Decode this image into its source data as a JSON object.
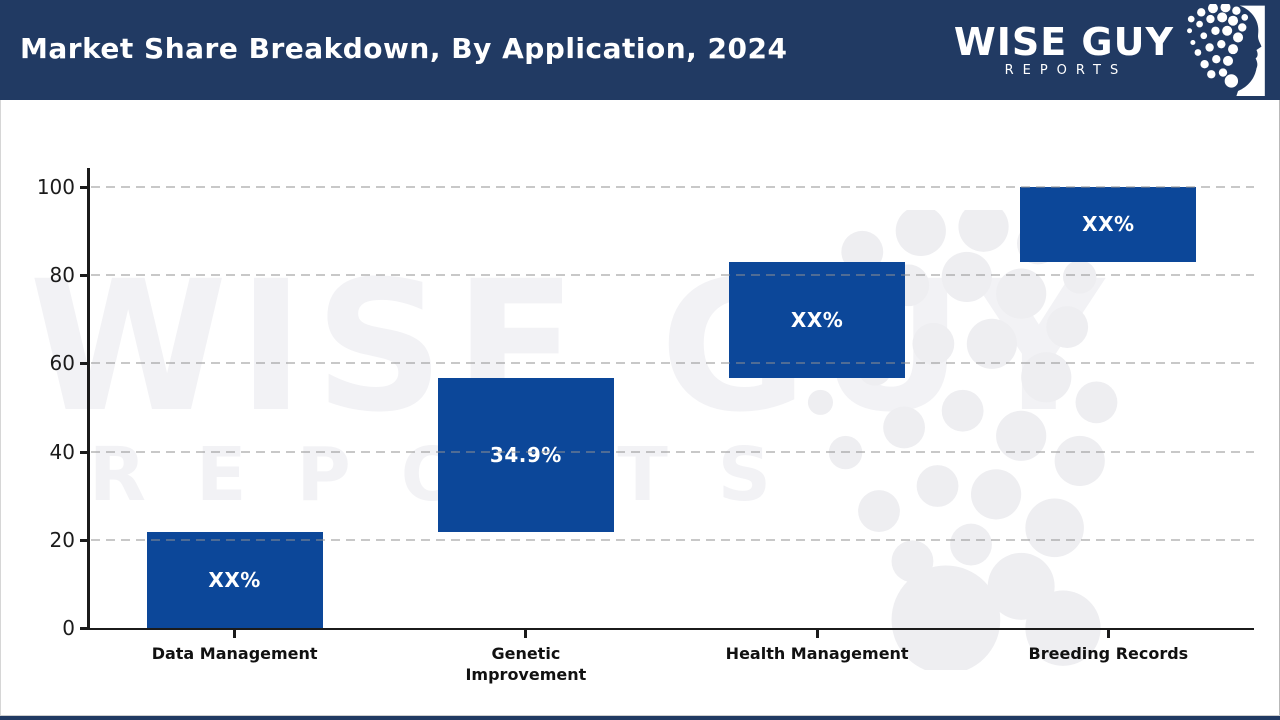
{
  "header": {
    "title": "Market Share Breakdown, By Application, 2024",
    "logo": {
      "line1": "WISE GUY",
      "line2": "REPORTS"
    }
  },
  "watermark": {
    "line1": "WISE GUY",
    "line2": "REPORTS"
  },
  "chart_data": {
    "type": "bar",
    "variant": "waterfall",
    "title": "Market Share Breakdown, By Application, 2024",
    "categories": [
      "Data Management",
      "Genetic Improvement",
      "Health Management",
      "Breeding Records"
    ],
    "categories_display": [
      [
        "Data Management"
      ],
      [
        "Genetic",
        "Improvement"
      ],
      [
        "Health Management"
      ],
      [
        "Breeding Records"
      ]
    ],
    "bars": [
      {
        "category": "Data Management",
        "start": 0,
        "end": 21.8,
        "label": "XX%"
      },
      {
        "category": "Genetic Improvement",
        "start": 21.8,
        "end": 56.7,
        "label": "34.9%"
      },
      {
        "category": "Health Management",
        "start": 56.7,
        "end": 83.0,
        "label": "XX%"
      },
      {
        "category": "Breeding Records",
        "start": 83.0,
        "end": 100.0,
        "label": "XX%"
      }
    ],
    "ylim": [
      0,
      100
    ],
    "yticks": [
      0,
      20,
      40,
      60,
      80,
      100
    ],
    "xlabel": "",
    "ylabel": "",
    "legend": null,
    "grid": {
      "axis": "y",
      "style": "dashed",
      "drawn_above_bars": true
    },
    "colors": {
      "bar": "#0c4799",
      "header_background": "#213a63",
      "bar_label_text": "#ffffff",
      "axis": "#1b1b1b",
      "watermark": "#f2f2f5"
    }
  }
}
